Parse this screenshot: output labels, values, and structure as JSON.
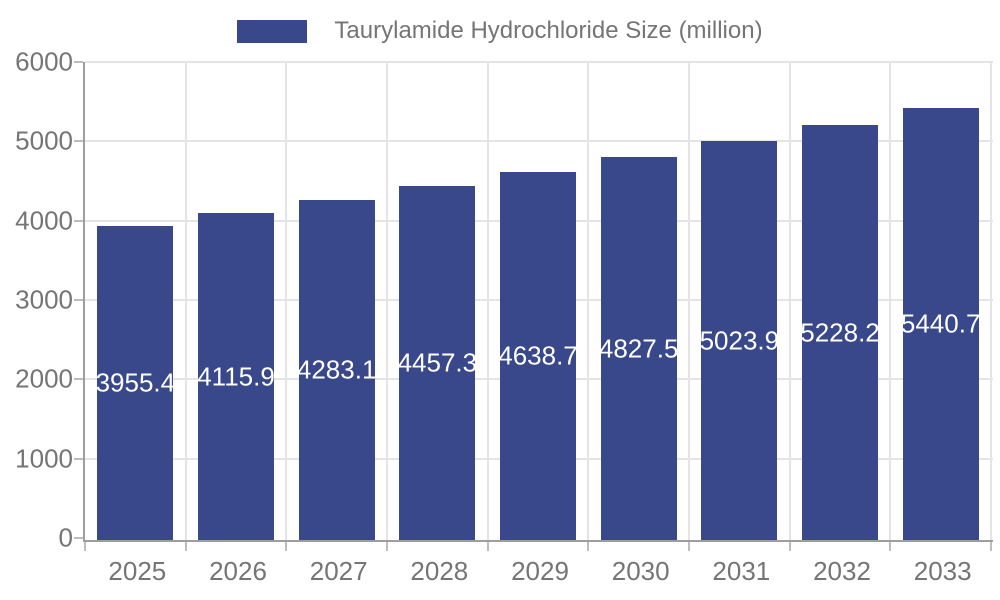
{
  "legend": {
    "label": "Taurylamide Hydrochloride Size (million)"
  },
  "chart_data": {
    "type": "bar",
    "title": "Taurylamide Hydrochloride Size (million)",
    "series_name": "Taurylamide Hydrochloride Size (million)",
    "categories": [
      "2025",
      "2026",
      "2027",
      "2028",
      "2029",
      "2030",
      "2031",
      "2032",
      "2033"
    ],
    "values": [
      3955.4,
      4115.9,
      4283.1,
      4457.3,
      4638.7,
      4827.5,
      5023.9,
      5228.2,
      5440.7
    ],
    "xlabel": "",
    "ylabel": "",
    "ylim": [
      0,
      6000
    ],
    "y_ticks": [
      0,
      1000,
      2000,
      3000,
      4000,
      5000,
      6000
    ],
    "grid": true,
    "legend_position": "top-center",
    "value_label_position": "inside-center"
  },
  "colors": {
    "background": "#ffffff",
    "bar": "#38488A",
    "bar_value_label": "#ffffff",
    "gridline": "#e4e4e4",
    "axis_line": "#9e9e9e",
    "tick_mark": "#bdbdbd",
    "tick_label": "#757575",
    "legend_text": "#757575"
  }
}
